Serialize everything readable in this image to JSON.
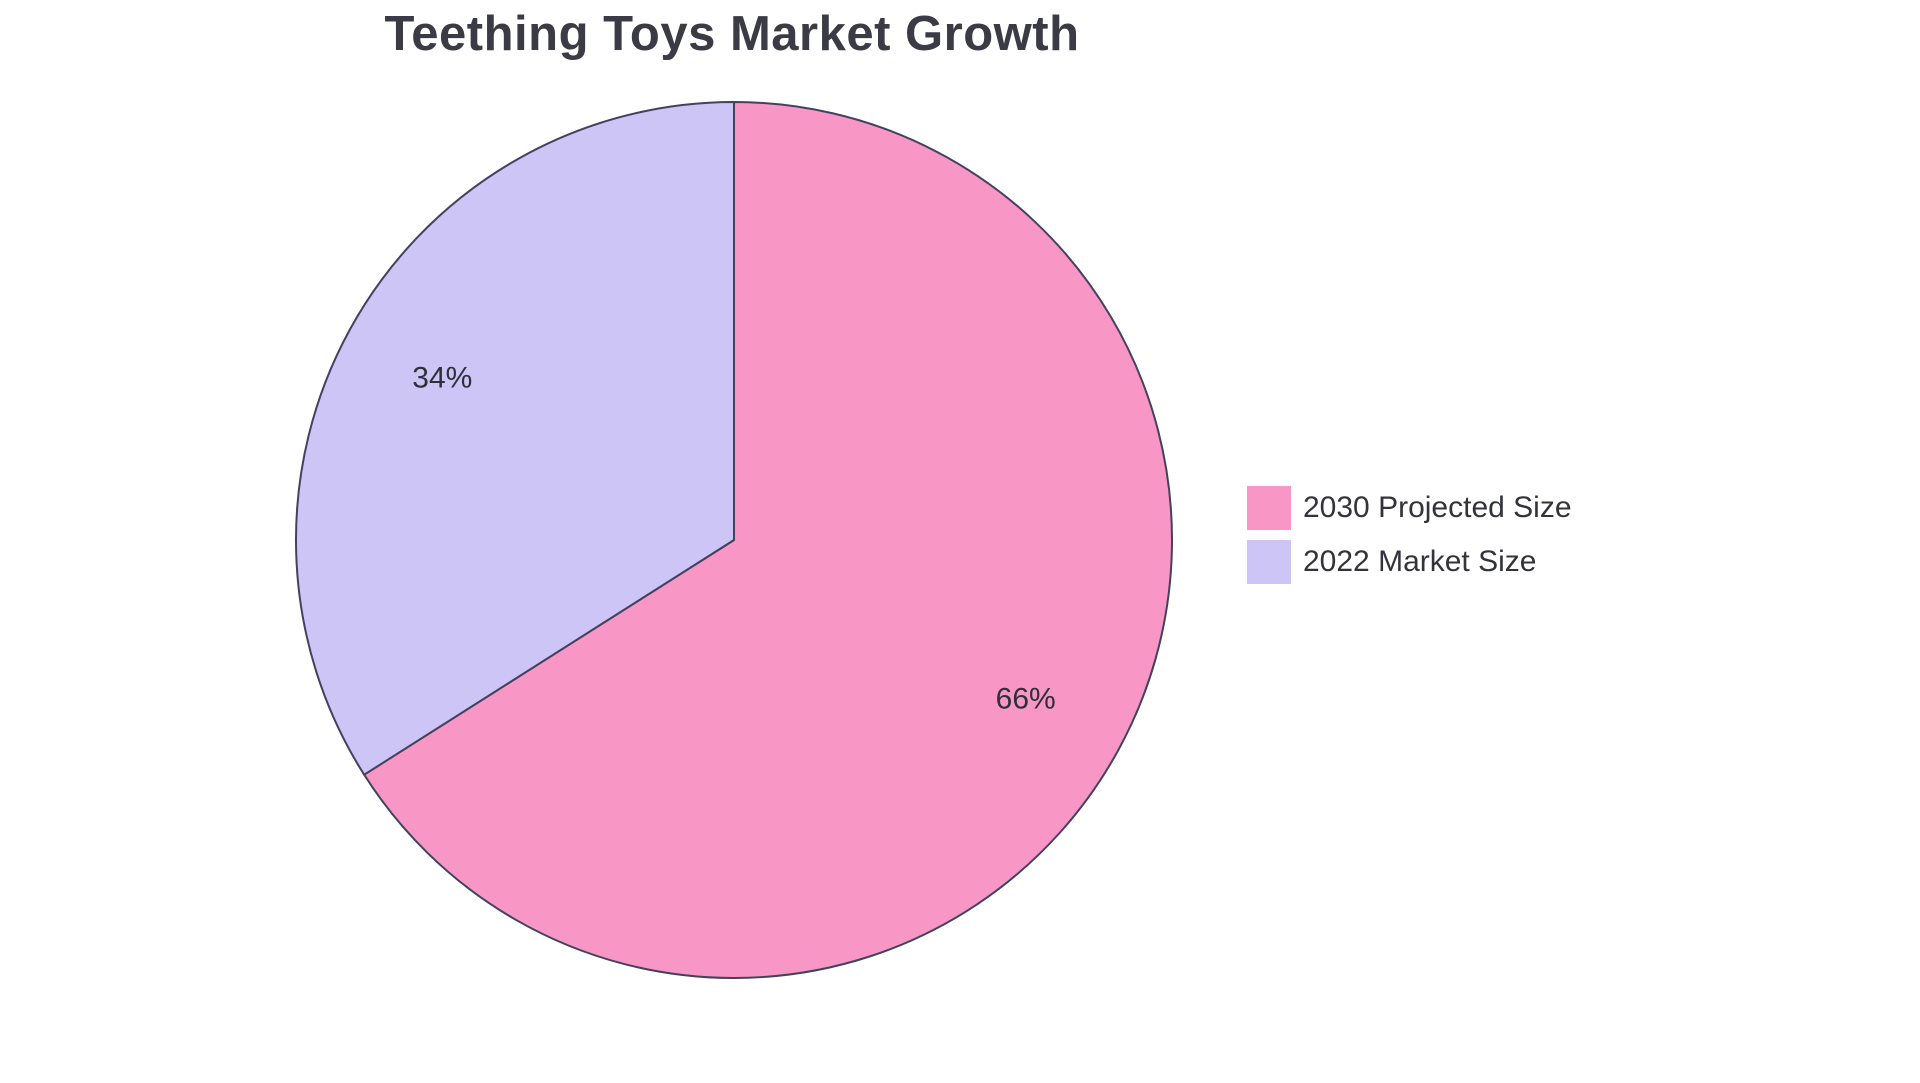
{
  "chart_data": {
    "type": "pie",
    "title": "Teething Toys Market Growth",
    "slices": [
      {
        "label": "2030 Projected Size",
        "value": 66,
        "percent_label": "66%",
        "color": "#F897C5"
      },
      {
        "label": "2022 Market Size",
        "value": 34,
        "percent_label": "34%",
        "color": "#CCC5F6"
      }
    ],
    "start_angle_deg": 0,
    "direction": "clockwise",
    "legend_position": "right",
    "stroke_color": "#42425F",
    "stroke_width": 2,
    "slice_label_color": "#2F2F3A",
    "title_color": "#3B3B45",
    "background": "#FFFFFF"
  }
}
